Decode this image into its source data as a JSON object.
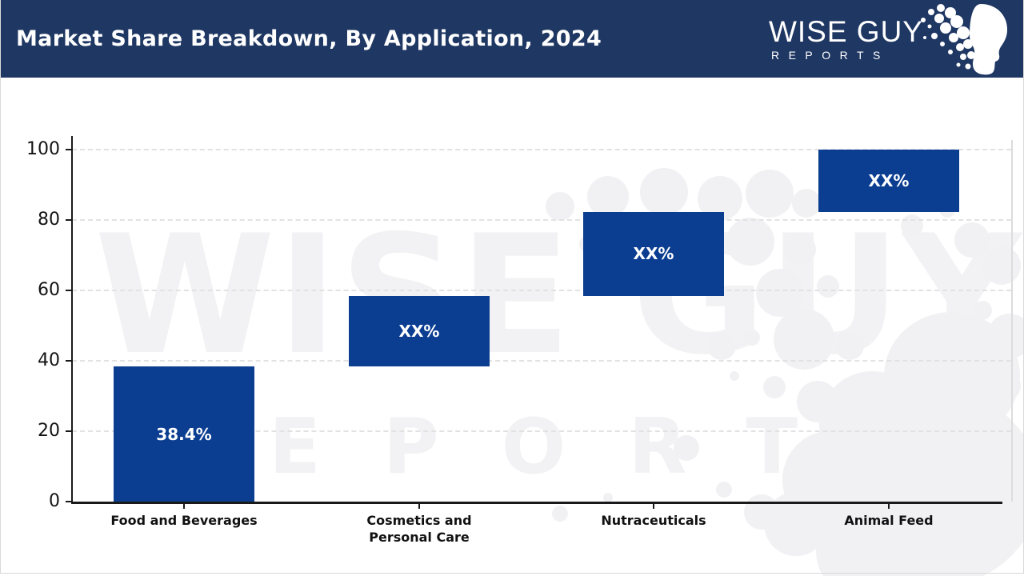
{
  "header": {
    "title": "Market Share Breakdown, By Application, 2024",
    "logo": {
      "name": "WISE GUY",
      "tagline": "REPORTS"
    }
  },
  "watermark": {
    "line1": "WISE GUY",
    "line2": "REPORTS"
  },
  "chart_data": {
    "type": "bar",
    "subtype": "waterfall",
    "title": "Market Share Breakdown, By Application, 2024",
    "categories": [
      "Food and Beverages",
      "Cosmetics and\nPersonal Care",
      "Nutraceuticals",
      "Animal Feed"
    ],
    "segments": [
      {
        "category": "Food and Beverages",
        "start": 0,
        "end": 38.4,
        "label": "38.4%"
      },
      {
        "category": "Cosmetics and\nPersonal Care",
        "start": 38.4,
        "end": 58.5,
        "label": "XX%"
      },
      {
        "category": "Nutraceuticals",
        "start": 58.5,
        "end": 82.3,
        "label": "XX%"
      },
      {
        "category": "Animal Feed",
        "start": 82.3,
        "end": 100,
        "label": "XX%"
      }
    ],
    "xlabel": "",
    "ylabel": "",
    "ylim": [
      0,
      100
    ],
    "yticks": [
      0,
      20,
      40,
      60,
      80,
      100
    ],
    "grid": "horizontal-dashed",
    "legend": "none",
    "bar_color": "#0b3d91",
    "axis_color": "#1a1a1a",
    "grid_color": "#e2e2e2",
    "value_label_color": "#ffffff"
  },
  "colors": {
    "header_bg": "#1f3763",
    "header_text": "#ffffff",
    "watermark": "#f2f2f4",
    "frame": "#d9d9d9"
  }
}
